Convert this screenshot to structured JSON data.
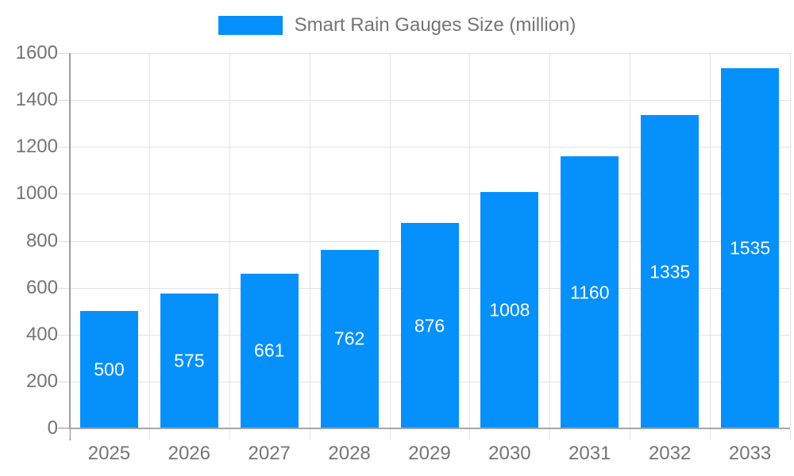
{
  "legend": {
    "label": "Smart Rain Gauges Size (million)",
    "swatch_color": "#0590fb"
  },
  "chart_data": {
    "type": "bar",
    "title": "Smart Rain Gauges Size (million)",
    "series_name": "Smart Rain Gauges Size (million)",
    "categories": [
      "2025",
      "2026",
      "2027",
      "2028",
      "2029",
      "2030",
      "2031",
      "2032",
      "2033"
    ],
    "values": [
      500,
      575,
      661,
      762,
      876,
      1008,
      1160,
      1335,
      1535
    ],
    "value_labels": [
      "500",
      "575",
      "661",
      "762",
      "876",
      "1008",
      "1160",
      "1335",
      "1535"
    ],
    "xlabel": "",
    "ylabel": "",
    "ylim": [
      0,
      1600
    ],
    "yticks": [
      0,
      200,
      400,
      600,
      800,
      1000,
      1200,
      1400,
      1600
    ],
    "grid": true,
    "legend_position": "top-center",
    "colors": {
      "bar": "#0590fb",
      "value_label": "#ffffff",
      "tick_text": "#757575",
      "legend_text": "#757575",
      "gridline": "#e3e3e3",
      "axis_line": "#9e9e9e",
      "background": "#ffffff"
    }
  }
}
